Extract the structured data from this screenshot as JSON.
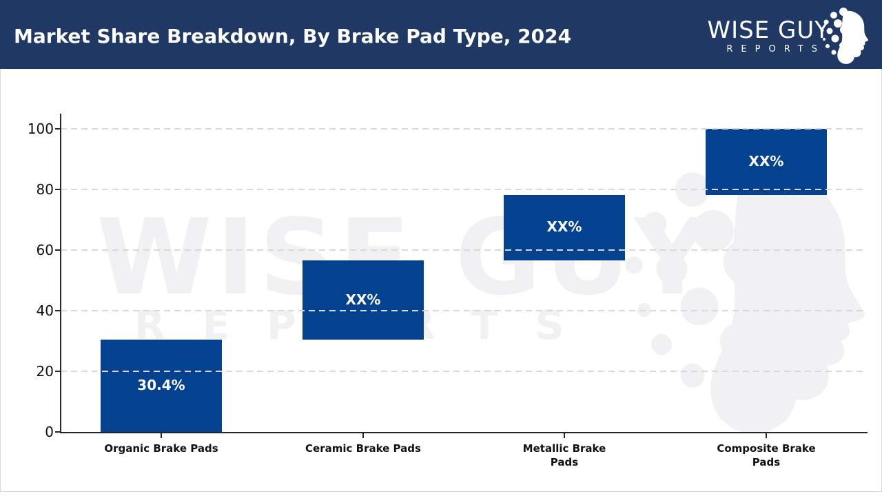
{
  "header": {
    "title": "Market Share Breakdown, By Brake Pad Type, 2024",
    "logo": {
      "primary": "WISE GUY",
      "secondary": "REPORTS"
    }
  },
  "watermark": {
    "primary": "WISE GUY",
    "secondary": "REPORTS"
  },
  "chart_data": {
    "type": "bar",
    "subtype": "waterfall",
    "title": "Market Share Breakdown, By Brake Pad Type, 2024",
    "categories": [
      "Organic Brake Pads",
      "Ceramic Brake Pads",
      "Metallic Brake\nPads",
      "Composite Brake\nPads"
    ],
    "segments": [
      {
        "category": "Organic Brake Pads",
        "start": 0,
        "end": 30.4,
        "label": "30.4%"
      },
      {
        "category": "Ceramic Brake Pads",
        "start": 30.4,
        "end": 56.6,
        "label": "XX%"
      },
      {
        "category": "Metallic Brake Pads",
        "start": 56.6,
        "end": 78.2,
        "label": "XX%"
      },
      {
        "category": "Composite Brake Pads",
        "start": 78.2,
        "end": 100,
        "label": "XX%"
      }
    ],
    "xlabel": "",
    "ylabel": "",
    "ylim": [
      0,
      100
    ],
    "yticks": [
      0,
      20,
      40,
      60,
      80,
      100
    ],
    "grid": "horizontal-dashed",
    "legend": "none"
  },
  "colors": {
    "header_bg": "#1f3864",
    "bar": "#04418f",
    "grid": "#d9d9d9",
    "axis": "#262626",
    "bar_label": "#ffffff",
    "watermark": "#f1f1f3"
  }
}
